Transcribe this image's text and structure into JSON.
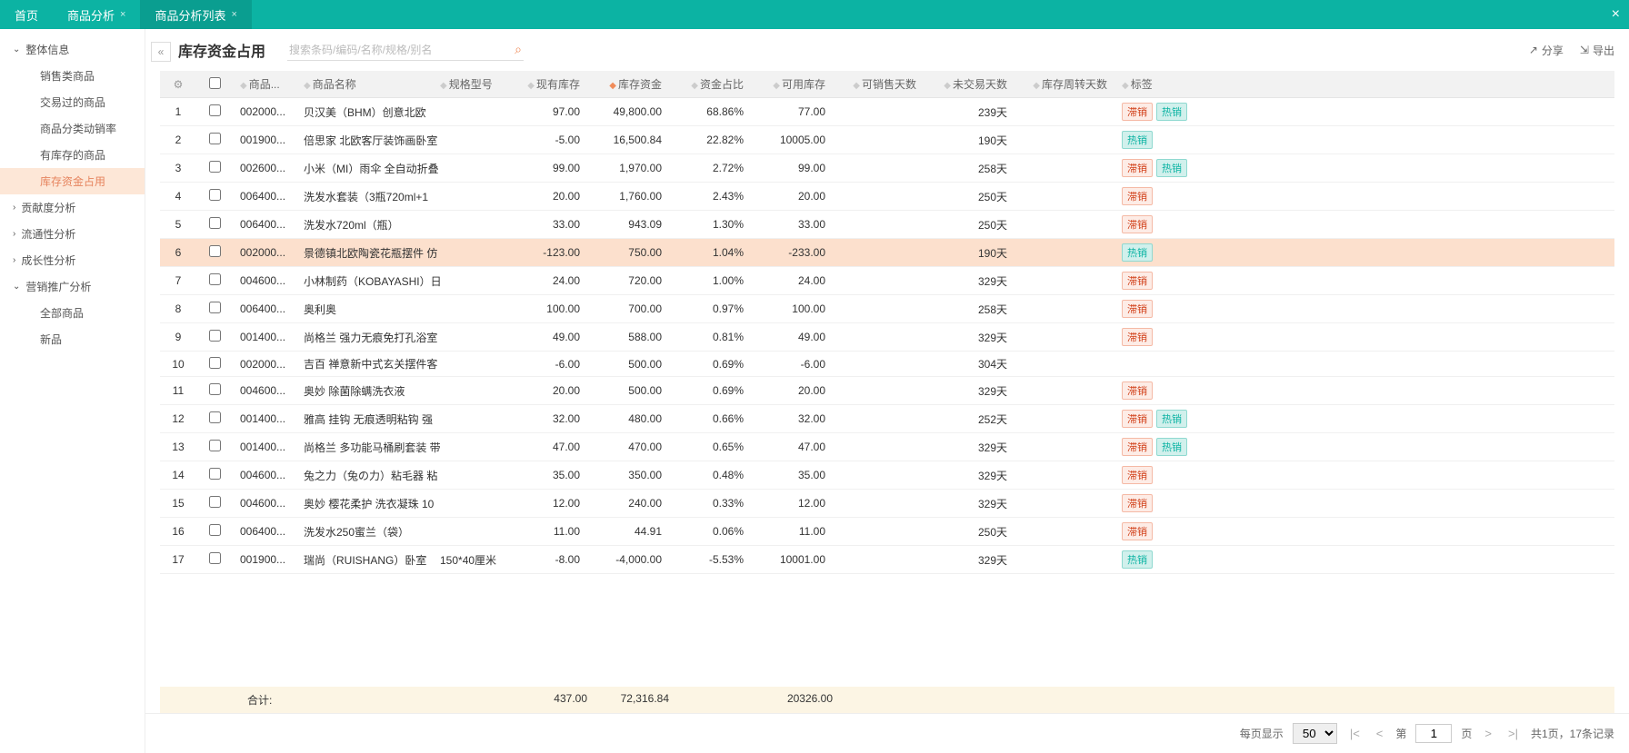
{
  "topTabs": [
    {
      "label": "首页",
      "closable": false,
      "active": false
    },
    {
      "label": "商品分析",
      "closable": true,
      "active": false
    },
    {
      "label": "商品分析列表",
      "closable": true,
      "active": true
    }
  ],
  "sidebar": [
    {
      "type": "group",
      "label": "整体信息",
      "open": true,
      "items": [
        {
          "label": "销售类商品",
          "active": false
        },
        {
          "label": "交易过的商品",
          "active": false
        },
        {
          "label": "商品分类动销率",
          "active": false
        },
        {
          "label": "有库存的商品",
          "active": false
        },
        {
          "label": "库存资金占用",
          "active": true
        }
      ]
    },
    {
      "type": "group",
      "label": "贡献度分析",
      "open": false,
      "items": []
    },
    {
      "type": "group",
      "label": "流通性分析",
      "open": false,
      "items": []
    },
    {
      "type": "group",
      "label": "成长性分析",
      "open": false,
      "items": []
    },
    {
      "type": "group",
      "label": "营销推广分析",
      "open": true,
      "items": [
        {
          "label": "全部商品",
          "active": false
        },
        {
          "label": "新品",
          "active": false
        }
      ]
    }
  ],
  "page": {
    "title": "库存资金占用",
    "searchPlaceholder": "搜索条码/编码/名称/规格/别名",
    "share": "分享",
    "export": "导出"
  },
  "columns": [
    {
      "key": "gear",
      "label": "",
      "w": 40,
      "align": "ctr"
    },
    {
      "key": "chk",
      "label": "",
      "w": 40,
      "align": "ctr"
    },
    {
      "key": "code",
      "label": "商品...",
      "w": 70,
      "sort": true
    },
    {
      "key": "name",
      "label": "商品名称",
      "w": 150,
      "sort": true
    },
    {
      "key": "spec",
      "label": "规格型号",
      "w": 80,
      "sort": true
    },
    {
      "key": "stock",
      "label": "现有库存",
      "w": 90,
      "align": "num",
      "sort": true
    },
    {
      "key": "fund",
      "label": "库存资金",
      "w": 90,
      "align": "num",
      "sort": true,
      "sortActive": true
    },
    {
      "key": "ratio",
      "label": "资金占比",
      "w": 90,
      "align": "num",
      "sort": true
    },
    {
      "key": "avail",
      "label": "可用库存",
      "w": 90,
      "align": "num",
      "sort": true
    },
    {
      "key": "saleDays",
      "label": "可销售天数",
      "w": 100,
      "align": "num",
      "sort": true
    },
    {
      "key": "noTrade",
      "label": "未交易天数",
      "w": 100,
      "align": "num",
      "sort": true
    },
    {
      "key": "turnDays",
      "label": "库存周转天数",
      "w": 110,
      "align": "num",
      "sort": true
    },
    {
      "key": "tags",
      "label": "标签",
      "w": 100,
      "sort": true
    }
  ],
  "rows": [
    {
      "idx": 1,
      "code": "002000...",
      "name": "贝汉美（BHM）创意北欧",
      "spec": "",
      "stock": "97.00",
      "fund": "49,800.00",
      "ratio": "68.86%",
      "avail": "77.00",
      "saleDays": "",
      "noTrade": "239天",
      "turnDays": "",
      "tags": [
        "滞销",
        "热销"
      ]
    },
    {
      "idx": 2,
      "code": "001900...",
      "name": "倍思家 北欧客厅装饰画卧室",
      "spec": "",
      "stock": "-5.00",
      "fund": "16,500.84",
      "ratio": "22.82%",
      "avail": "10005.00",
      "saleDays": "",
      "noTrade": "190天",
      "turnDays": "",
      "tags": [
        "热销"
      ]
    },
    {
      "idx": 3,
      "code": "002600...",
      "name": "小米（MI）雨伞 全自动折叠",
      "spec": "",
      "stock": "99.00",
      "fund": "1,970.00",
      "ratio": "2.72%",
      "avail": "99.00",
      "saleDays": "",
      "noTrade": "258天",
      "turnDays": "",
      "tags": [
        "滞销",
        "热销"
      ]
    },
    {
      "idx": 4,
      "code": "006400...",
      "name": "洗发水套装（3瓶720ml+1",
      "spec": "",
      "stock": "20.00",
      "fund": "1,760.00",
      "ratio": "2.43%",
      "avail": "20.00",
      "saleDays": "",
      "noTrade": "250天",
      "turnDays": "",
      "tags": [
        "滞销"
      ]
    },
    {
      "idx": 5,
      "code": "006400...",
      "name": "洗发水720ml（瓶）",
      "spec": "",
      "stock": "33.00",
      "fund": "943.09",
      "ratio": "1.30%",
      "avail": "33.00",
      "saleDays": "",
      "noTrade": "250天",
      "turnDays": "",
      "tags": [
        "滞销"
      ]
    },
    {
      "idx": 6,
      "hl": true,
      "code": "002000...",
      "name": "景德镇北欧陶瓷花瓶摆件 仿",
      "spec": "",
      "stock": "-123.00",
      "fund": "750.00",
      "ratio": "1.04%",
      "avail": "-233.00",
      "saleDays": "",
      "noTrade": "190天",
      "turnDays": "",
      "tags": [
        "热销"
      ]
    },
    {
      "idx": 7,
      "code": "004600...",
      "name": "小林制药（KOBAYASHI）日",
      "spec": "",
      "stock": "24.00",
      "fund": "720.00",
      "ratio": "1.00%",
      "avail": "24.00",
      "saleDays": "",
      "noTrade": "329天",
      "turnDays": "",
      "tags": [
        "滞销"
      ]
    },
    {
      "idx": 8,
      "code": "006400...",
      "name": "奥利奥",
      "spec": "",
      "stock": "100.00",
      "fund": "700.00",
      "ratio": "0.97%",
      "avail": "100.00",
      "saleDays": "",
      "noTrade": "258天",
      "turnDays": "",
      "tags": [
        "滞销"
      ]
    },
    {
      "idx": 9,
      "code": "001400...",
      "name": "尚格兰 强力无痕免打孔浴室",
      "spec": "",
      "stock": "49.00",
      "fund": "588.00",
      "ratio": "0.81%",
      "avail": "49.00",
      "saleDays": "",
      "noTrade": "329天",
      "turnDays": "",
      "tags": [
        "滞销"
      ]
    },
    {
      "idx": 10,
      "code": "002000...",
      "name": "吉百 禅意新中式玄关摆件客",
      "spec": "",
      "stock": "-6.00",
      "fund": "500.00",
      "ratio": "0.69%",
      "avail": "-6.00",
      "saleDays": "",
      "noTrade": "304天",
      "turnDays": "",
      "tags": []
    },
    {
      "idx": 11,
      "code": "004600...",
      "name": "奥妙 除菌除螨洗衣液",
      "spec": "",
      "stock": "20.00",
      "fund": "500.00",
      "ratio": "0.69%",
      "avail": "20.00",
      "saleDays": "",
      "noTrade": "329天",
      "turnDays": "",
      "tags": [
        "滞销"
      ]
    },
    {
      "idx": 12,
      "code": "001400...",
      "name": "雅高 挂钩 无痕透明粘钩 强",
      "spec": "",
      "stock": "32.00",
      "fund": "480.00",
      "ratio": "0.66%",
      "avail": "32.00",
      "saleDays": "",
      "noTrade": "252天",
      "turnDays": "",
      "tags": [
        "滞销",
        "热销"
      ]
    },
    {
      "idx": 13,
      "code": "001400...",
      "name": "尚格兰 多功能马桶刷套装 带",
      "spec": "",
      "stock": "47.00",
      "fund": "470.00",
      "ratio": "0.65%",
      "avail": "47.00",
      "saleDays": "",
      "noTrade": "329天",
      "turnDays": "",
      "tags": [
        "滞销",
        "热销"
      ]
    },
    {
      "idx": 14,
      "code": "004600...",
      "name": "兔之力（兔の力）粘毛器 粘",
      "spec": "",
      "stock": "35.00",
      "fund": "350.00",
      "ratio": "0.48%",
      "avail": "35.00",
      "saleDays": "",
      "noTrade": "329天",
      "turnDays": "",
      "tags": [
        "滞销"
      ]
    },
    {
      "idx": 15,
      "code": "004600...",
      "name": "奥妙 樱花柔护 洗衣凝珠 10",
      "spec": "",
      "stock": "12.00",
      "fund": "240.00",
      "ratio": "0.33%",
      "avail": "12.00",
      "saleDays": "",
      "noTrade": "329天",
      "turnDays": "",
      "tags": [
        "滞销"
      ]
    },
    {
      "idx": 16,
      "code": "006400...",
      "name": "洗发水250蜜兰（袋）",
      "spec": "",
      "stock": "11.00",
      "fund": "44.91",
      "ratio": "0.06%",
      "avail": "11.00",
      "saleDays": "",
      "noTrade": "250天",
      "turnDays": "",
      "tags": [
        "滞销"
      ]
    },
    {
      "idx": 17,
      "code": "001900...",
      "name": "瑞尚（RUISHANG）卧室",
      "spec": "150*40厘米",
      "stock": "-8.00",
      "fund": "-4,000.00",
      "ratio": "-5.53%",
      "avail": "10001.00",
      "saleDays": "",
      "noTrade": "329天",
      "turnDays": "",
      "tags": [
        "热销"
      ]
    }
  ],
  "totals": {
    "label": "合计:",
    "stock": "437.00",
    "fund": "72,316.84",
    "avail": "20326.00"
  },
  "pager": {
    "perPageLabel": "每页显示",
    "perPage": "50",
    "pageWord1": "第",
    "page": "1",
    "pageWord2": "页",
    "summary": "共1页，17条记录"
  },
  "badgeLabels": {
    "滞销": "滞销",
    "热销": "热销"
  }
}
